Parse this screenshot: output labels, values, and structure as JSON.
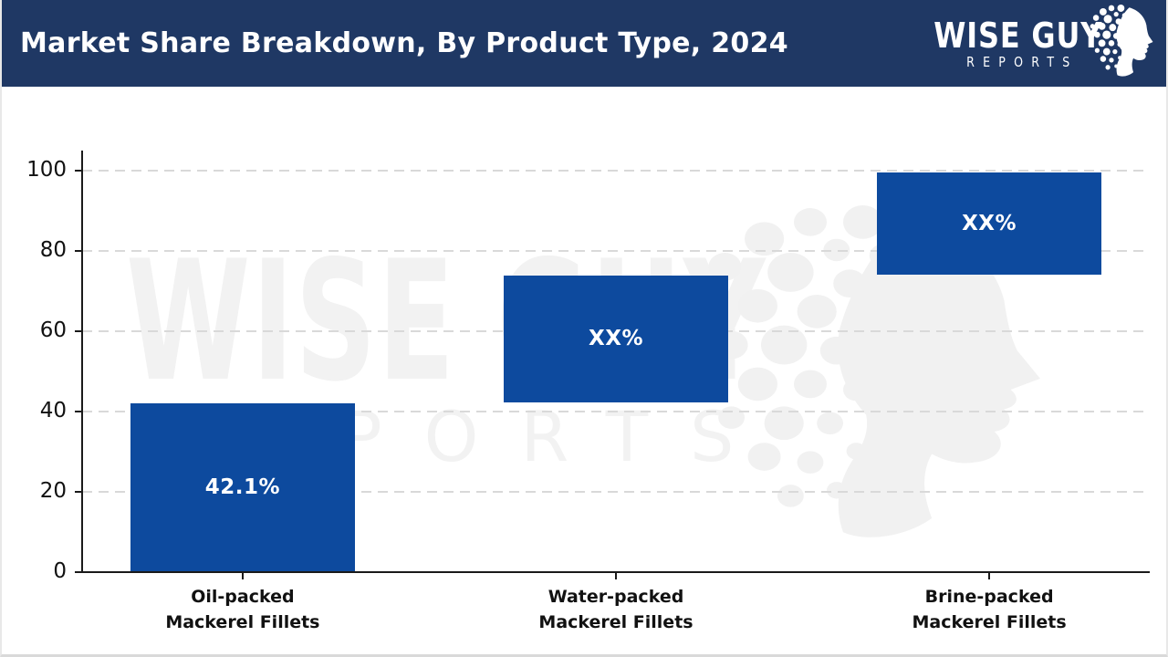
{
  "header": {
    "title": "Market Share Breakdown, By Product Type, 2024",
    "logo": {
      "wordmark": "WISE GUY",
      "subtext": "REPORTS"
    }
  },
  "watermark": {
    "wordmark": "WISE GUY",
    "subtext": "REPORTS"
  },
  "colors": {
    "header_bg": "#1f3864",
    "bar": "#0d4a9e",
    "grid": "#d9d9d9",
    "axis": "#1a1a1a",
    "value_label": "#ffffff"
  },
  "chart_data": {
    "type": "bar",
    "subtype": "waterfall",
    "title": "Market Share Breakdown, By Product Type, 2024",
    "categories": [
      "Oil-packed\nMackerel Fillets",
      "Water-packed\nMackerel Fillets",
      "Brine-packed\nMackerel Fillets"
    ],
    "series": [
      {
        "name": "Market share (%)",
        "segments": [
          {
            "category": "Oil-packed Mackerel Fillets",
            "start": 0,
            "end": 42.1,
            "label": "42.1%"
          },
          {
            "category": "Water-packed Mackerel Fillets",
            "start": 42.3,
            "end": 73.9,
            "label": "XX%"
          },
          {
            "category": "Brine-packed Mackerel Fillets",
            "start": 74.0,
            "end": 99.5,
            "label": "XX%"
          }
        ]
      }
    ],
    "xlabel": "",
    "ylabel": "",
    "yticks": [
      0,
      20,
      40,
      60,
      80,
      100
    ],
    "ylim": [
      0,
      105
    ],
    "xlim": [
      -0.43,
      2.43
    ],
    "bar_width": 0.6,
    "grid": "horizontal-dashed",
    "legend": "none"
  }
}
